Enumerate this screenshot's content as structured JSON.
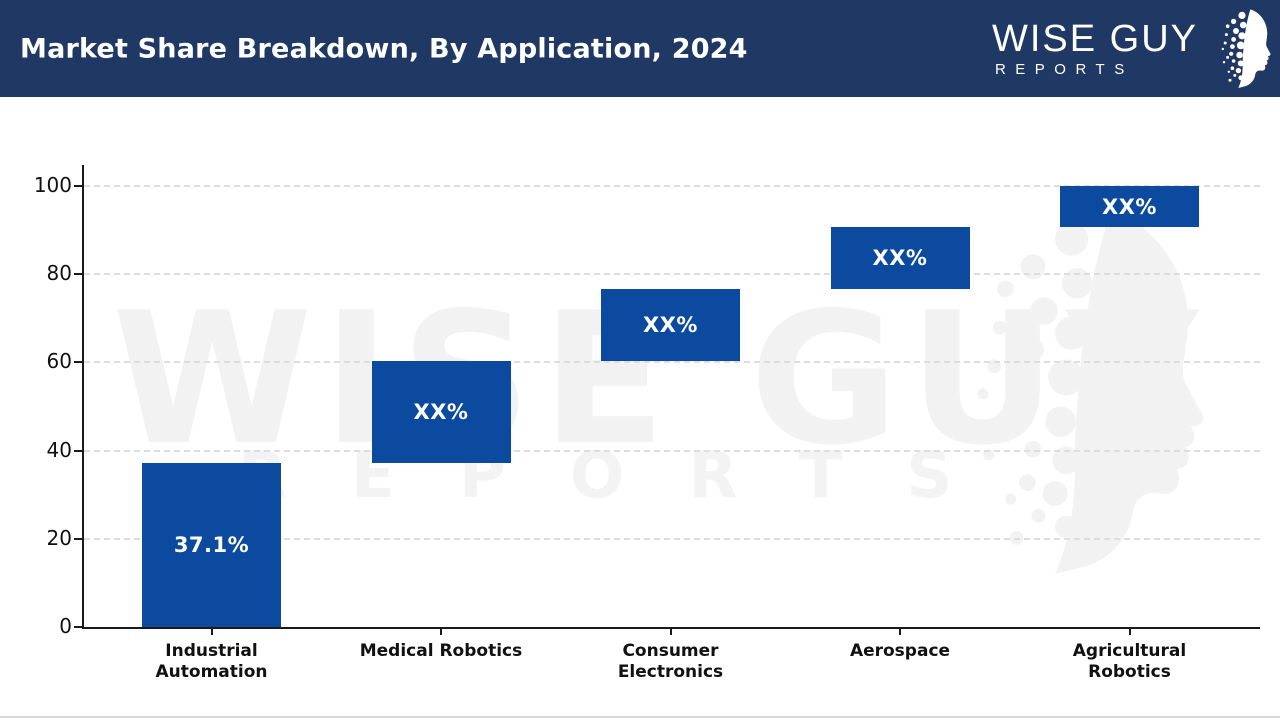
{
  "header": {
    "title": "Market Share Breakdown, By Application, 2024",
    "logo": {
      "line1": "WISE GUY",
      "line2": "REPORTS"
    }
  },
  "watermark": {
    "line1": "WISE GUY",
    "line2": "REPORTS"
  },
  "chart_data": {
    "type": "bar",
    "subtype": "floating-waterfall",
    "title": "Market Share Breakdown, By Application, 2024",
    "categories": [
      "Industrial Automation",
      "Medical Robotics",
      "Consumer Electronics",
      "Aerospace",
      "Agricultural Robotics"
    ],
    "category_lines": [
      [
        "Industrial",
        "Automation"
      ],
      [
        "Medical Robotics"
      ],
      [
        "Consumer",
        "Electronics"
      ],
      [
        "Aerospace"
      ],
      [
        "Agricultural",
        "Robotics"
      ]
    ],
    "segments": [
      {
        "category": "Industrial Automation",
        "start": 0,
        "end": 37.1,
        "label": "37.1%"
      },
      {
        "category": "Medical Robotics",
        "start": 37.1,
        "end": 60.4,
        "label": "XX%"
      },
      {
        "category": "Consumer Electronics",
        "start": 60.4,
        "end": 76.6,
        "label": "XX%"
      },
      {
        "category": "Aerospace",
        "start": 76.6,
        "end": 90.7,
        "label": "XX%"
      },
      {
        "category": "Agricultural Robotics",
        "start": 90.7,
        "end": 100,
        "label": "XX%"
      }
    ],
    "ylim": [
      0,
      100
    ],
    "yticks": [
      0,
      20,
      40,
      60,
      80,
      100
    ],
    "xlabel": "",
    "ylabel": "",
    "grid": "horizontal-dashed",
    "legend": "none",
    "bar_color": "#0b4a9f",
    "value_label_color": "#ffffff"
  },
  "colors": {
    "header_bg": "#1f3864",
    "bar": "#0b4a9f",
    "axis": "#1a1a1a",
    "gridline": "#dedede",
    "watermark": "#f2f2f2",
    "bottom_rule": "#d9d9d9"
  }
}
